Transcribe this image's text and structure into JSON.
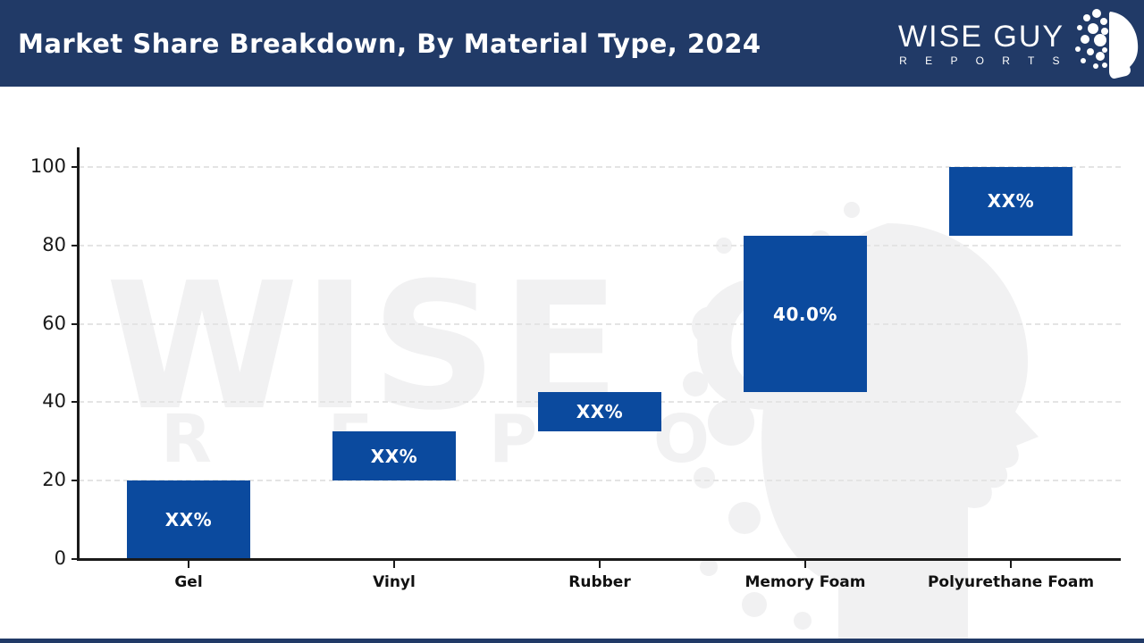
{
  "header": {
    "title": "Market Share Breakdown, By Material Type, 2024",
    "logo": {
      "line1": "WISE GUY",
      "line2": "R E P O R T S"
    }
  },
  "watermark": {
    "line1": "WISE GU",
    "line2": "R E P O R"
  },
  "colors": {
    "header_bg": "#213a67",
    "footer_bg": "#213a67",
    "bar": "#0b4a9e",
    "bar_label": "#ffffff",
    "gridline": "#e4e4e4",
    "axis": "#1a1a1a",
    "watermark": "#f1f1f2",
    "title_text": "#ffffff"
  },
  "chart_data": {
    "type": "bar",
    "subtype": "floating-waterfall",
    "title": "Market Share Breakdown, By Material Type, 2024",
    "categories": [
      "Gel",
      "Vinyl",
      "Rubber",
      "Memory Foam",
      "Polyurethane Foam"
    ],
    "series": [
      {
        "name": "Market share (%)",
        "bar_start": [
          0,
          20,
          32.5,
          42.5,
          82.5
        ],
        "bar_end": [
          20,
          32.5,
          42.5,
          82.5,
          100
        ],
        "labels": [
          "XX%",
          "XX%",
          "XX%",
          "40.0%",
          "XX%"
        ]
      }
    ],
    "xlabel": "",
    "ylabel": "",
    "ylim": [
      0,
      105
    ],
    "yticks": [
      0,
      20,
      40,
      60,
      80,
      100
    ],
    "grid": {
      "axis": "y",
      "style": "dashed"
    },
    "legend": "none",
    "bar_color": "#0b4a9e"
  }
}
